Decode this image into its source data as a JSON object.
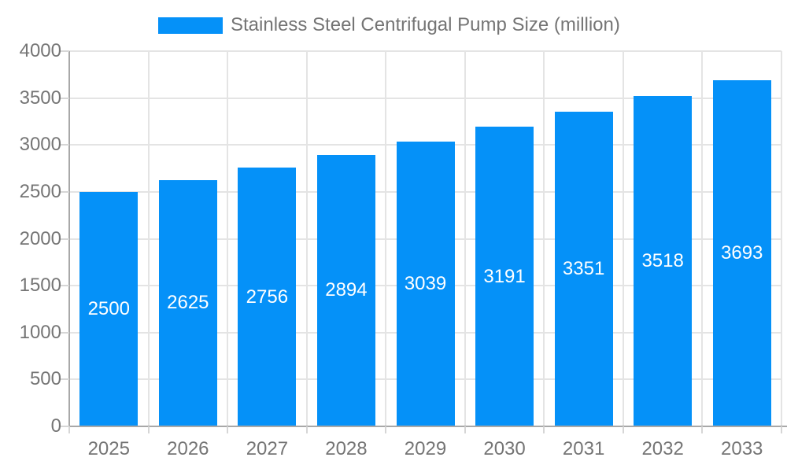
{
  "legend": {
    "label": "Stainless Steel Centrifugal Pump Size (million)",
    "swatch_color": "#0591F8"
  },
  "chart_data": {
    "type": "bar",
    "title": "Stainless Steel Centrifugal Pump Size (million)",
    "categories": [
      "2025",
      "2026",
      "2027",
      "2028",
      "2029",
      "2030",
      "2031",
      "2032",
      "2033"
    ],
    "values": [
      2500,
      2625,
      2756,
      2894,
      3039,
      3191,
      3351,
      3518,
      3693
    ],
    "xlabel": "",
    "ylabel": "",
    "ylim": [
      0,
      4000
    ],
    "ytick_step": 500,
    "ytick_labels": [
      "0",
      "500",
      "1000",
      "1500",
      "2000",
      "2500",
      "3000",
      "3500",
      "4000"
    ],
    "grid": true,
    "legend_position": "top",
    "bar_color": "#0591F8",
    "bar_label_color": "#FFFFFF",
    "grid_color": "#E4E4E4",
    "axis_color": "#A8A8A8",
    "text_color": "#757575"
  }
}
